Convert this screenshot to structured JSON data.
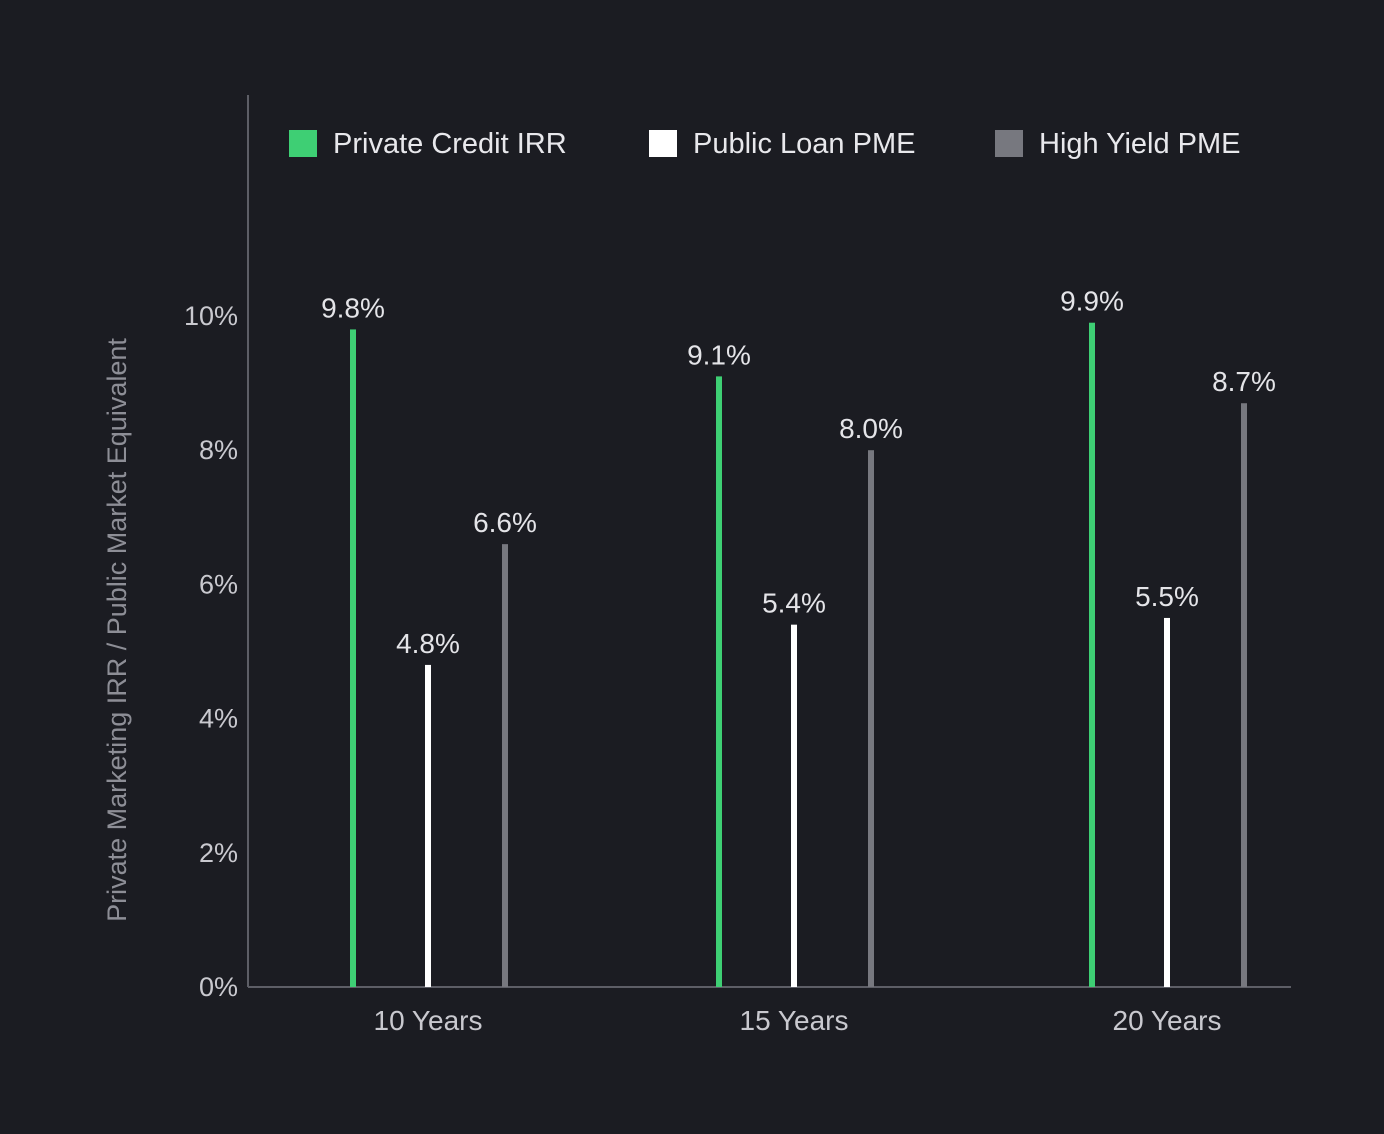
{
  "chart_data": {
    "type": "bar",
    "categories": [
      "10 Years",
      "15 Years",
      "20 Years"
    ],
    "series": [
      {
        "name": "Private Credit IRR",
        "color": "#3ecf74",
        "values": [
          9.8,
          9.1,
          9.9
        ],
        "labels": [
          "9.8%",
          "9.1%",
          "9.9%"
        ]
      },
      {
        "name": "Public Loan PME",
        "color": "#ffffff",
        "values": [
          4.8,
          5.4,
          5.5
        ],
        "labels": [
          "4.8%",
          "5.4%",
          "5.5%"
        ]
      },
      {
        "name": "High Yield PME",
        "color": "#77787f",
        "values": [
          6.6,
          8.0,
          8.7
        ],
        "labels": [
          "6.6%",
          "8.0%",
          "8.7%"
        ]
      }
    ],
    "yticks": [
      "0%",
      "2%",
      "4%",
      "6%",
      "8%",
      "10%"
    ],
    "ylabel": "Private Marketing IRR / Public Market Equivalent",
    "xlabel": "",
    "ylim": [
      0,
      10
    ],
    "legend": "top",
    "grid": false
  },
  "colors": {
    "background": "#1b1c22",
    "axis": "#5d5e66"
  }
}
